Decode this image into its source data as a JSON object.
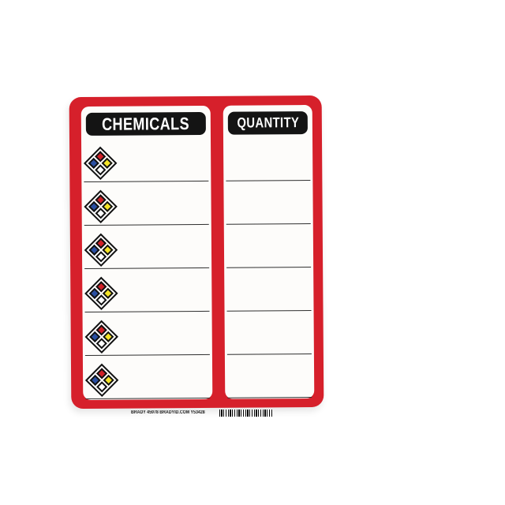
{
  "colors": {
    "sign_red": "#d6202b",
    "header_bar_black": "#141414",
    "nfpa_red": "#d02027",
    "nfpa_blue": "#2a4fa2",
    "nfpa_yellow": "#f4e428",
    "nfpa_white": "#ffffff"
  },
  "sign": {
    "chemicals": {
      "header": "CHEMICALS",
      "rows": [
        {
          "icon": "nfpa-diamond",
          "value": ""
        },
        {
          "icon": "nfpa-diamond",
          "value": ""
        },
        {
          "icon": "nfpa-diamond",
          "value": ""
        },
        {
          "icon": "nfpa-diamond",
          "value": ""
        },
        {
          "icon": "nfpa-diamond",
          "value": ""
        },
        {
          "icon": "nfpa-diamond",
          "value": ""
        }
      ]
    },
    "quantity": {
      "header": "QUANTITY",
      "rows": [
        {
          "value": ""
        },
        {
          "value": ""
        },
        {
          "value": ""
        },
        {
          "value": ""
        },
        {
          "value": ""
        },
        {
          "value": ""
        }
      ]
    },
    "footer": {
      "text": "BRADY 45978 BRADYID.COM Y53428",
      "barcode": "barcode"
    }
  }
}
